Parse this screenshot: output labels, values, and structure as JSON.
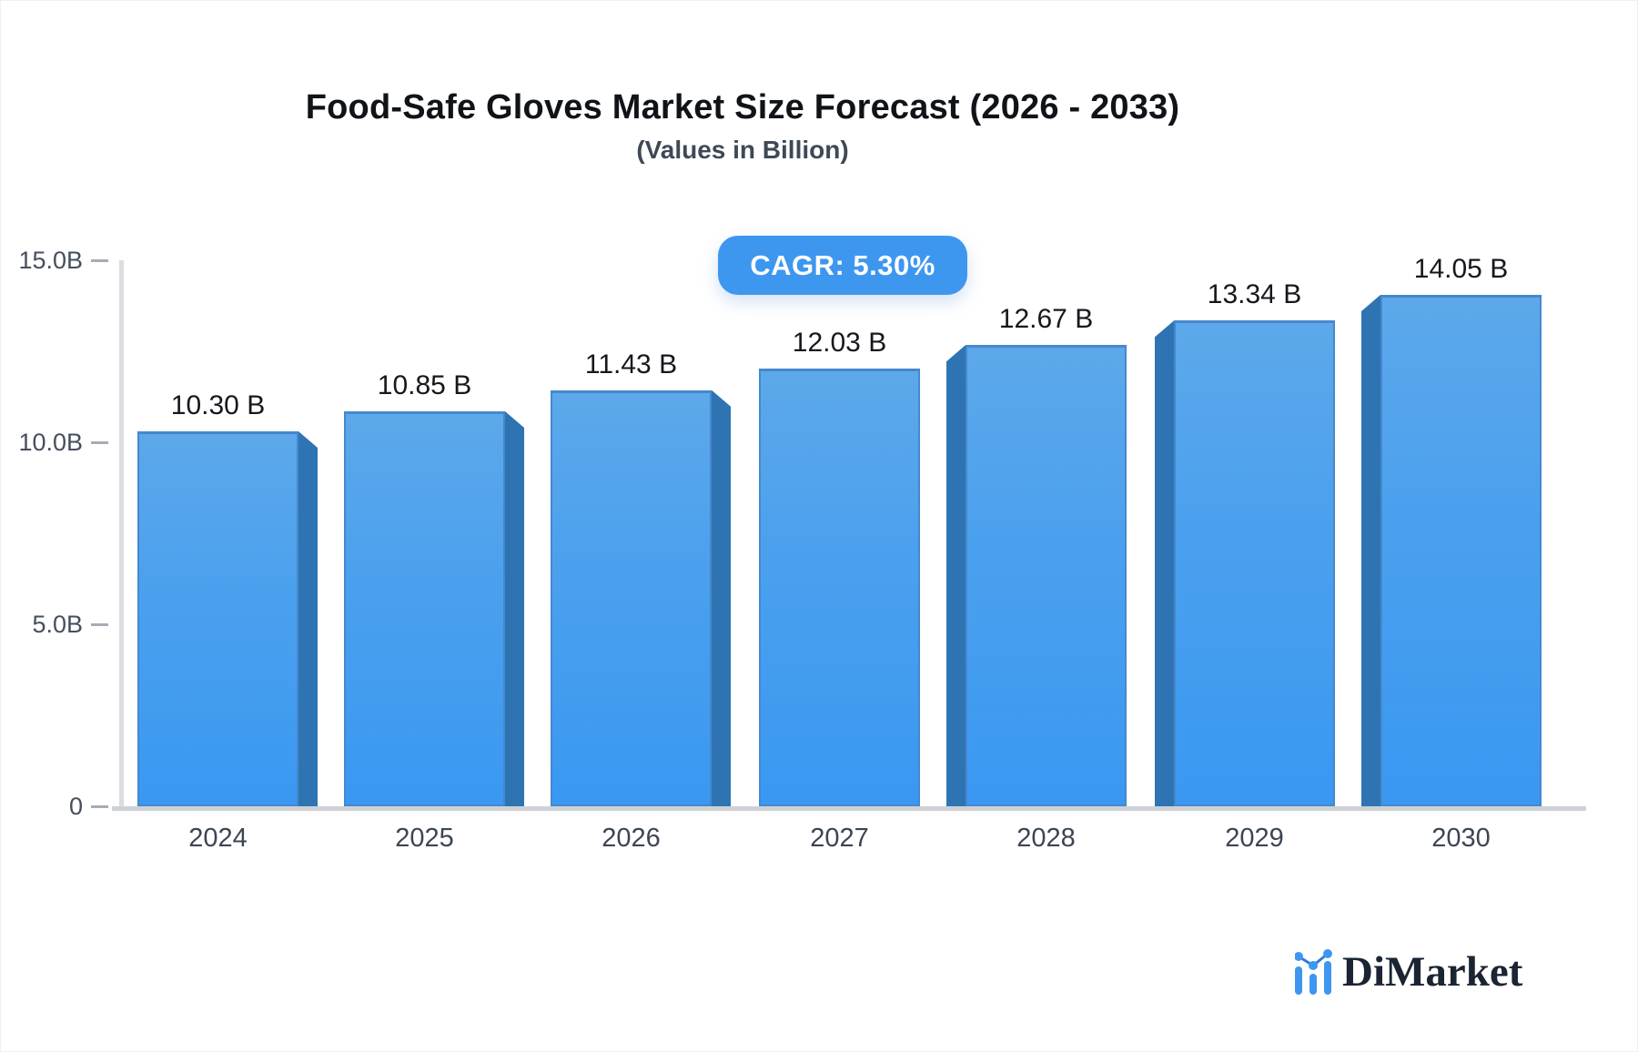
{
  "title": "Food-Safe Gloves Market Size Forecast (2026 - 2033)",
  "subtitle": "(Values in Billion)",
  "cagr_badge": "CAGR: 5.30%",
  "colors": {
    "accent_blue": "#3e97ef",
    "bar_face_top": "#5ca8ea",
    "bar_face_bottom": "#3a98f2",
    "bar_side_shadow": "#2e74b3",
    "axis_gray": "#ced2d6",
    "label_dark": "#15181d",
    "label_slate": "#3c4553"
  },
  "logo": {
    "text": "DiMarket",
    "icon": "mini-bar-chart-icon",
    "icon_color": "#3d97f0",
    "text_color": "#1b2432"
  },
  "chart_data": {
    "type": "bar",
    "title": "Food-Safe Gloves Market Size Forecast (2026 - 2033)",
    "subtitle": "(Values in Billion)",
    "annotation": "CAGR: 5.30%",
    "categories": [
      "2024",
      "2025",
      "2026",
      "2027",
      "2028",
      "2029",
      "2030"
    ],
    "values": [
      10.3,
      10.85,
      11.43,
      12.03,
      12.67,
      13.34,
      14.05
    ],
    "value_labels": [
      "10.30 B",
      "10.85 B",
      "11.43 B",
      "12.03 B",
      "12.67 B",
      "13.34 B",
      "14.05 B"
    ],
    "xlabel": "",
    "ylabel": "",
    "ylim": [
      0,
      15
    ],
    "yticks": {
      "labels": [
        "15.0B",
        "10.0B",
        "5.0B",
        "0"
      ],
      "values": [
        15,
        10,
        5,
        0
      ]
    },
    "grid": false,
    "legend": "none",
    "bar_style": "3d-perspective-blue"
  }
}
